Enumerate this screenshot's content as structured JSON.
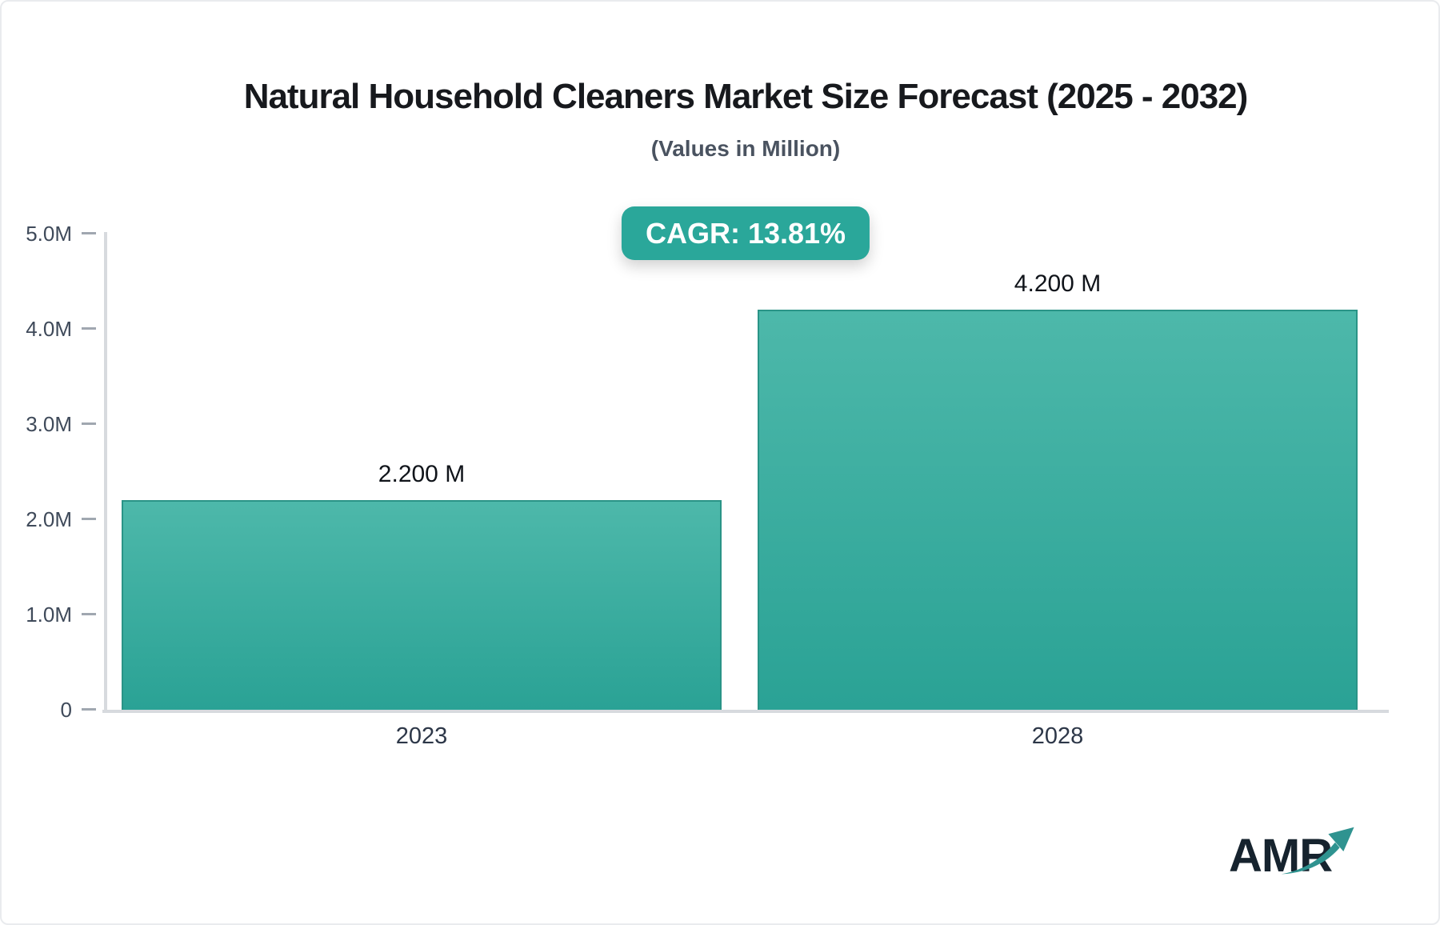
{
  "header": {
    "title": "Natural Household Cleaners Market Size Forecast (2025 - 2032)",
    "subtitle": "(Values in Million)",
    "cagr_badge": "CAGR: 13.81%"
  },
  "logo": {
    "text": "AMR"
  },
  "colors": {
    "accent_teal": "#2aa79a",
    "badge_text": "#ffffff",
    "bar_gradient_top": "#4db8aa",
    "bar_gradient_bottom": "#2aa295",
    "bar_border": "#2a9487",
    "axis_line": "#d7dade",
    "tick_dash": "#a0a7b0",
    "tick_label": "#3f4a5a",
    "category_label": "#2d3748",
    "value_label": "#10141a",
    "title": "#17191d",
    "subtitle": "#4a5360",
    "logo_text": "#16232e",
    "logo_arrow": "#2f9390"
  },
  "chart_data": {
    "type": "bar",
    "title": "Natural Household Cleaners Market Size Forecast (2025 - 2032)",
    "subtitle": "(Values in Million)",
    "cagr": "13.81%",
    "unit": "Million",
    "categories": [
      "2023",
      "2028"
    ],
    "values": [
      2.2,
      4.2
    ],
    "value_labels": [
      "2.200 M",
      "4.200 M"
    ],
    "ylim": [
      0,
      5
    ],
    "yticks": [
      {
        "value": 0,
        "label": "0"
      },
      {
        "value": 1,
        "label": "1.0M"
      },
      {
        "value": 2,
        "label": "2.0M"
      },
      {
        "value": 3,
        "label": "3.0M"
      },
      {
        "value": 4,
        "label": "4.0M"
      },
      {
        "value": 5,
        "label": "5.0M"
      }
    ],
    "grid": false,
    "legend": false
  }
}
